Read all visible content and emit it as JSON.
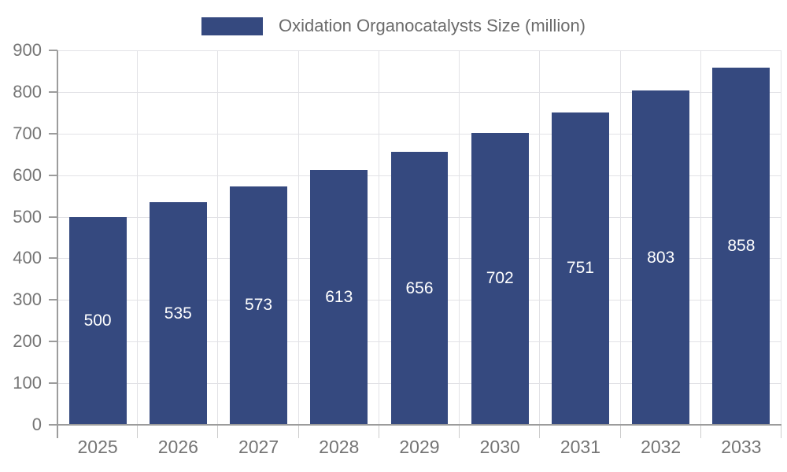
{
  "chart_data": {
    "type": "bar",
    "series_name": "Oxidation Organocatalysts Size (million)",
    "categories": [
      "2025",
      "2026",
      "2027",
      "2028",
      "2029",
      "2030",
      "2031",
      "2032",
      "2033"
    ],
    "values": [
      500,
      535,
      573,
      613,
      656,
      702,
      751,
      803,
      858
    ],
    "xlabel": "",
    "ylabel": "",
    "ylim": [
      0,
      900
    ],
    "yticks": [
      0,
      100,
      200,
      300,
      400,
      500,
      600,
      700,
      800,
      900
    ],
    "grid": true,
    "legend_position": "top-center",
    "value_labels": "inside-center",
    "colors": {
      "bar": "#35497F",
      "bar_label": "#ffffff",
      "grid": "#e2e2e6",
      "axis": "#9c9c9c",
      "tick": "#cccccc",
      "tick_label": "#757575",
      "legend_text": "#6b6b6b"
    }
  }
}
